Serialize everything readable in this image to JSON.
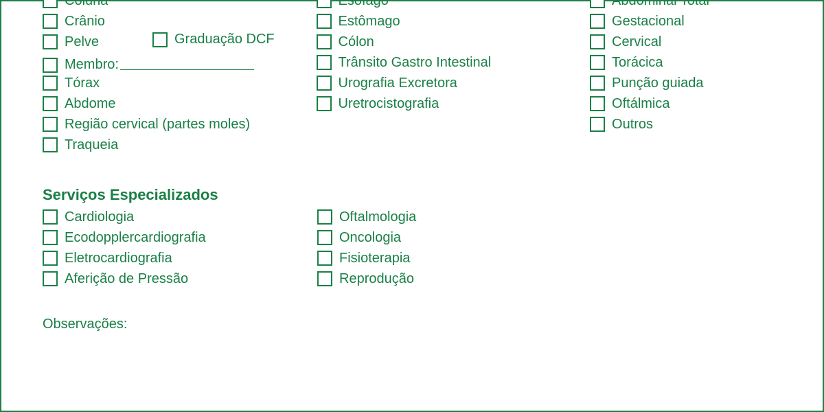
{
  "colors": {
    "primary": "#1a8046",
    "background": "#ffffff"
  },
  "typography": {
    "label_fontsize": 20,
    "title_fontsize": 22,
    "family": "Arial"
  },
  "checkbox": {
    "size": 22,
    "border_width": 2
  },
  "column1": {
    "items": [
      "Coluna",
      "Crânio",
      "Pelve",
      "Membro:",
      "Tórax",
      "Abdome",
      "Região cervical (partes moles)",
      "Traqueia"
    ]
  },
  "graduacao_dcf": "Graduação DCF",
  "column2": {
    "items": [
      "Esôfago",
      "Estômago",
      "Cólon",
      "Trânsito Gastro Intestinal",
      "Urografia Excretora",
      "Uretrocistografia"
    ]
  },
  "column3": {
    "items": [
      "Abdominal Total",
      "Gestacional",
      "Cervical",
      "Torácica",
      "Punção guiada",
      "Oftálmica",
      "Outros"
    ]
  },
  "section2": {
    "title": "Serviços Especializados",
    "col1": [
      "Cardiologia",
      "Ecodopplercardiografia",
      "Eletrocardiografia",
      "Aferição de Pressão"
    ],
    "col2": [
      "Oftalmologia",
      "Oncologia",
      "Fisioterapia",
      "Reprodução"
    ]
  },
  "observacoes_label": "Observações:"
}
